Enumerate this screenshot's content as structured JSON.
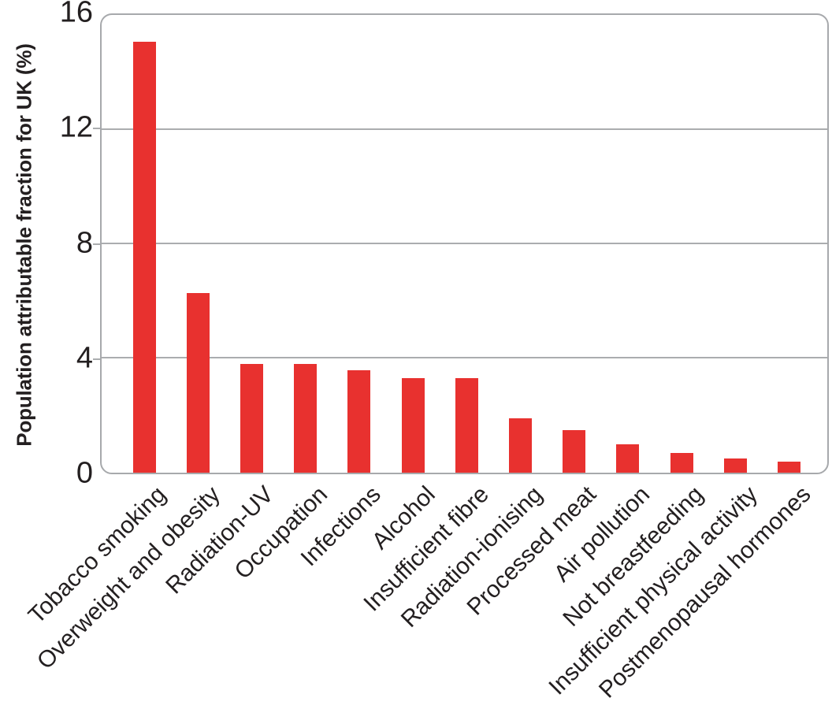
{
  "chart_data": {
    "type": "bar",
    "title": "",
    "xlabel": "",
    "ylabel": "Population attributable fraction for UK (%)",
    "categories": [
      "Tobacco smoking",
      "Overweight and obesity",
      "Radiation-UV",
      "Occupation",
      "Infections",
      "Alcohol",
      "Insufficient fibre",
      "Radiation-ionising",
      "Processed meat",
      "Air pollution",
      "Not breastfeeding",
      "Insufficient physical activity",
      "Postmenopausal hormones"
    ],
    "values": [
      15.1,
      6.3,
      3.8,
      3.8,
      3.6,
      3.3,
      3.3,
      1.9,
      1.5,
      1.0,
      0.7,
      0.5,
      0.4
    ],
    "ylim": [
      0,
      16
    ],
    "yticks": [
      0,
      4,
      8,
      12,
      16
    ],
    "gridline_values": [
      4,
      8,
      12
    ],
    "grid": "horizontal",
    "legend_position": "none",
    "bar_color": "#e8312f",
    "grid_color": "#abadaf",
    "border_color": "#a7a9ac",
    "text_color": "#231f20"
  }
}
